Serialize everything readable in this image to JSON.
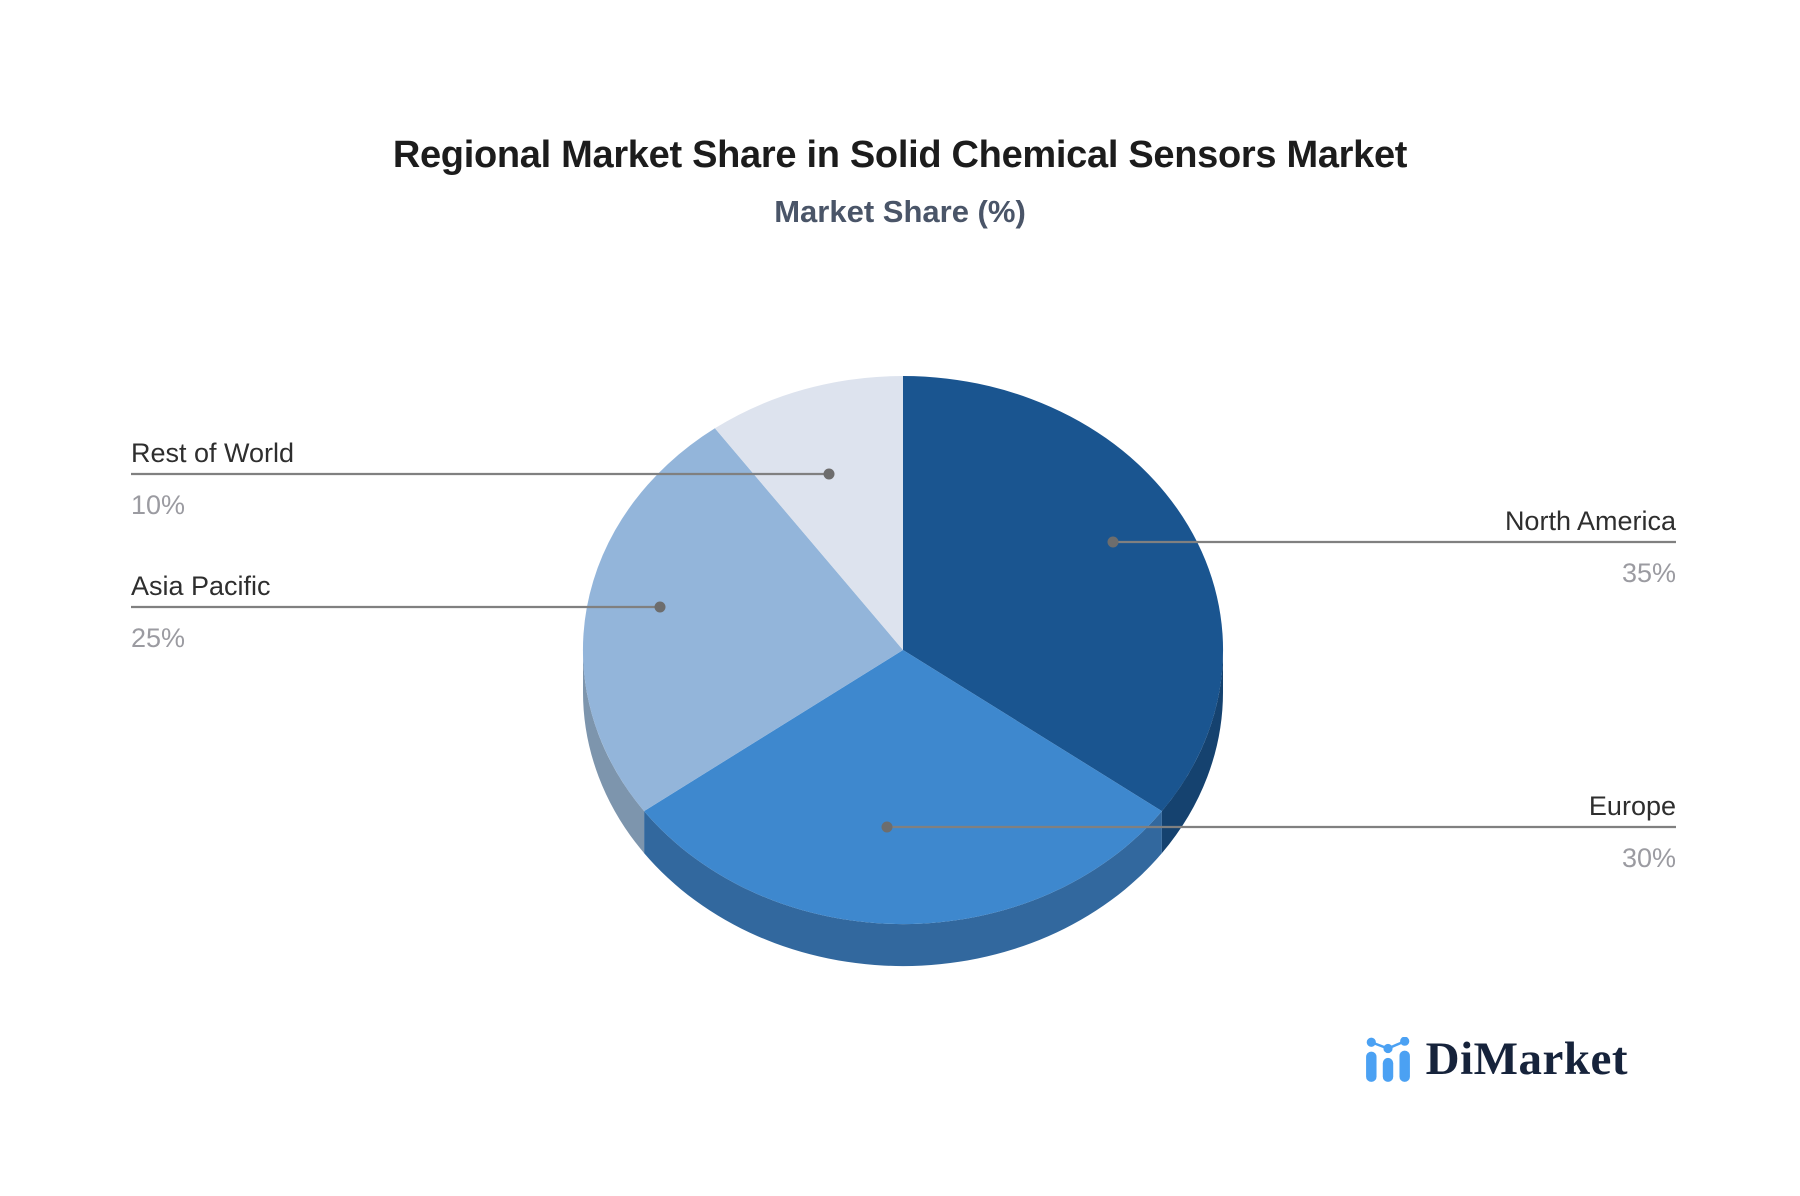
{
  "page": {
    "background": "#ffffff"
  },
  "chart_data": {
    "type": "pie",
    "title": "Regional Market Share in Solid Chemical Sensors Market",
    "subtitle": "Market Share (%)",
    "categories": [
      "North America",
      "Europe",
      "Asia Pacific",
      "Rest of World"
    ],
    "values": [
      35,
      30,
      25,
      10
    ],
    "value_labels": [
      "35%",
      "30%",
      "25%",
      "10%"
    ],
    "colors": [
      "#1a5590",
      "#3e88ce",
      "#93b5da",
      "#dde3ee"
    ],
    "side_colors": [
      "#15426f",
      "#32689e",
      "#7d95ad",
      "#b9c3d4"
    ],
    "start_angle_deg": 0,
    "direction": "clockwise",
    "is_3d": true,
    "legend": "none",
    "label_line_color": "#808080",
    "label_dot_color": "#6d6d6d",
    "label_name_color": "#2e2e2e",
    "label_value_color": "#9b9ba1"
  },
  "logo": {
    "text": "DiMarket",
    "icon": "bar-chart-logo-icon",
    "icon_color": "#4ba1f3",
    "text_color": "#16233b"
  }
}
